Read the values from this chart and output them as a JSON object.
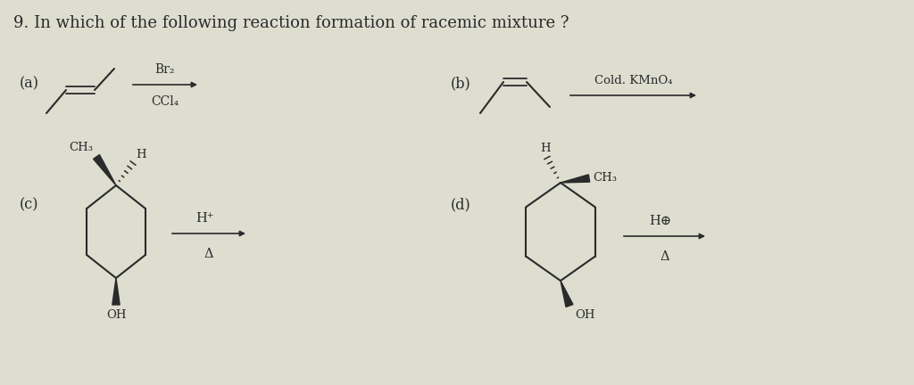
{
  "title": "9. In which of the following reaction formation of racemic mixture ?",
  "bg_color": "#ddddd0",
  "text_color": "#2a2a2a",
  "label_a": "(a)",
  "label_b": "(b)",
  "label_c": "(c)",
  "label_d": "(d)",
  "reagent_a_line1": "Br₂",
  "reagent_a_line2": "CCl₄",
  "reagent_b": "Cold. KMnO₄",
  "reagent_c_line1": "H⁺",
  "reagent_c_line2": "Δ",
  "reagent_d_line1": "H⊕",
  "reagent_d_line2": "Δ",
  "ch3_label": "CH₃",
  "h_label": "H",
  "oh_label": "OH"
}
